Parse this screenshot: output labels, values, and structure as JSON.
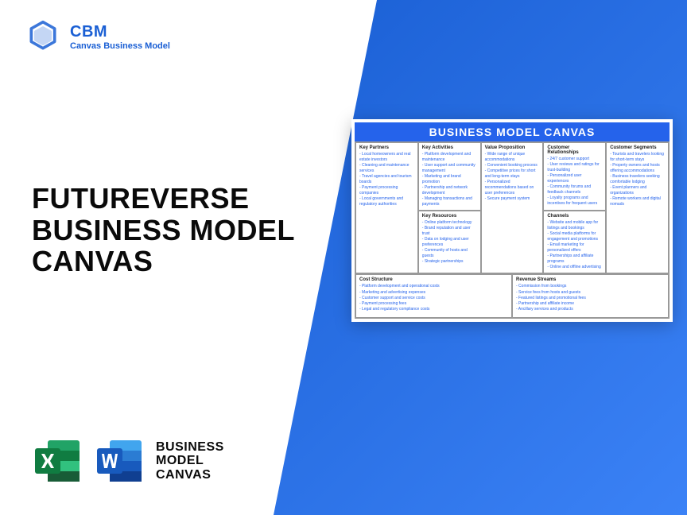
{
  "brand": {
    "abbrev": "CBM",
    "name": "Canvas Business Model",
    "logo_color": "#1a5fd4"
  },
  "title": "FUTUREVERSE BUSINESS MODEL CANVAS",
  "footer": {
    "label": "BUSINESS MODEL CANVAS",
    "excel_color": "#107c41",
    "word_color": "#185abd"
  },
  "bg_gradient": {
    "from": "#1a5fd4",
    "to": "#3b82f6"
  },
  "canvas": {
    "title": "BUSINESS MODEL CANVAS",
    "title_bg": "#2563eb",
    "item_color": "#2563eb",
    "header_fontsize": 6,
    "item_fontsize": 5,
    "sections": {
      "key_partners": {
        "h": "Key Partners",
        "items": [
          "- Local homeowners and real estate investors",
          "- Cleaning and maintenance services",
          "- Travel agencies and tourism boards",
          "- Payment processing companies",
          "- Local governments and regulatory authorities"
        ]
      },
      "key_activities": {
        "h": "Key Activities",
        "items": [
          "- Platform development and maintenance",
          "- User support and community management",
          "- Marketing and brand promotion",
          "- Partnership and network development",
          "- Managing transactions and payments"
        ]
      },
      "key_resources": {
        "h": "Key Resources",
        "items": [
          "- Online platform technology",
          "- Brand reputation and user trust",
          "- Data on lodging and user preferences",
          "- Community of hosts and guests",
          "- Strategic partnerships"
        ]
      },
      "value_prop": {
        "h": "Value Proposition",
        "items": [
          "- Wide range of unique accommodations",
          "- Convenient booking process",
          "- Competitive prices for short and long-term stays",
          "- Personalized recommendations based on user preferences",
          "- Secure payment system"
        ]
      },
      "cust_rel": {
        "h": "Customer Relationships",
        "items": [
          "- 24/7 customer support",
          "- User reviews and ratings for trust-building",
          "- Personalized user experiences",
          "- Community forums and feedback channels",
          "- Loyalty programs and incentives for frequent users"
        ]
      },
      "channels": {
        "h": "Channels",
        "items": [
          "- Website and mobile app for listings and bookings",
          "- Social media platforms for engagement and promotions",
          "- Email marketing for personalized offers",
          "- Partnerships and affiliate programs",
          "- Online and offline advertising"
        ]
      },
      "cust_seg": {
        "h": "Customer Segments",
        "items": [
          "- Tourists and travelers looking for short-term stays",
          "- Property owners and hosts offering accommodations",
          "- Business travelers seeking comfortable lodging",
          "- Event planners and organizations",
          "- Remote workers and digital nomads"
        ]
      },
      "cost": {
        "h": "Cost Structure",
        "items": [
          "- Platform development and operational costs",
          "- Marketing and advertising expenses",
          "- Customer support and service costs",
          "- Payment processing fees",
          "- Legal and regulatory compliance costs"
        ]
      },
      "revenue": {
        "h": "Revenue Streams",
        "items": [
          "- Commission from bookings",
          "- Service fees from hosts and guests",
          "- Featured listings and promotional fees",
          "- Partnership and affiliate income",
          "- Ancillary services and products"
        ]
      }
    }
  }
}
